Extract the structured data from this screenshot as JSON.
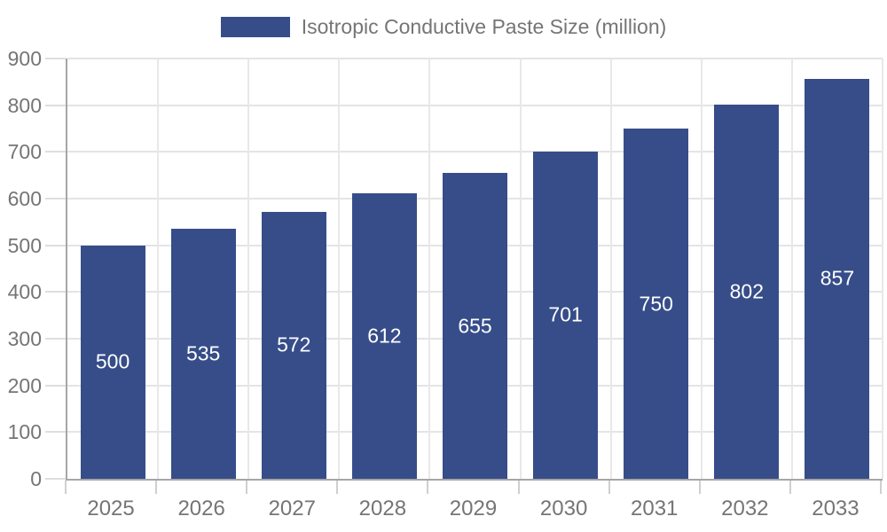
{
  "page": {
    "background_color": "#ffffff"
  },
  "legend": {
    "label": "Isotropic Conductive Paste Size (million)",
    "swatch_color": "#364d89",
    "text_color": "#757575",
    "position": "top-center"
  },
  "chart_data": {
    "type": "bar",
    "title": "",
    "categories": [
      "2025",
      "2026",
      "2027",
      "2028",
      "2029",
      "2030",
      "2031",
      "2032",
      "2033"
    ],
    "series": [
      {
        "name": "Isotropic Conductive Paste Size (million)",
        "values": [
          500,
          535,
          572,
          612,
          655,
          701,
          750,
          802,
          857
        ]
      }
    ],
    "xlabel": "",
    "ylabel": "",
    "ylim": [
      0,
      900
    ],
    "ytick_step": 100,
    "yticks": [
      0,
      100,
      200,
      300,
      400,
      500,
      600,
      700,
      800,
      900
    ],
    "grid": true,
    "legend_position": "top",
    "bar_color": "#364d89",
    "value_label_color": "#ffffff",
    "axis_text_color": "#757575",
    "axis_line_color": "#a6a6a6",
    "gridline_color": "#e4e4e4"
  }
}
